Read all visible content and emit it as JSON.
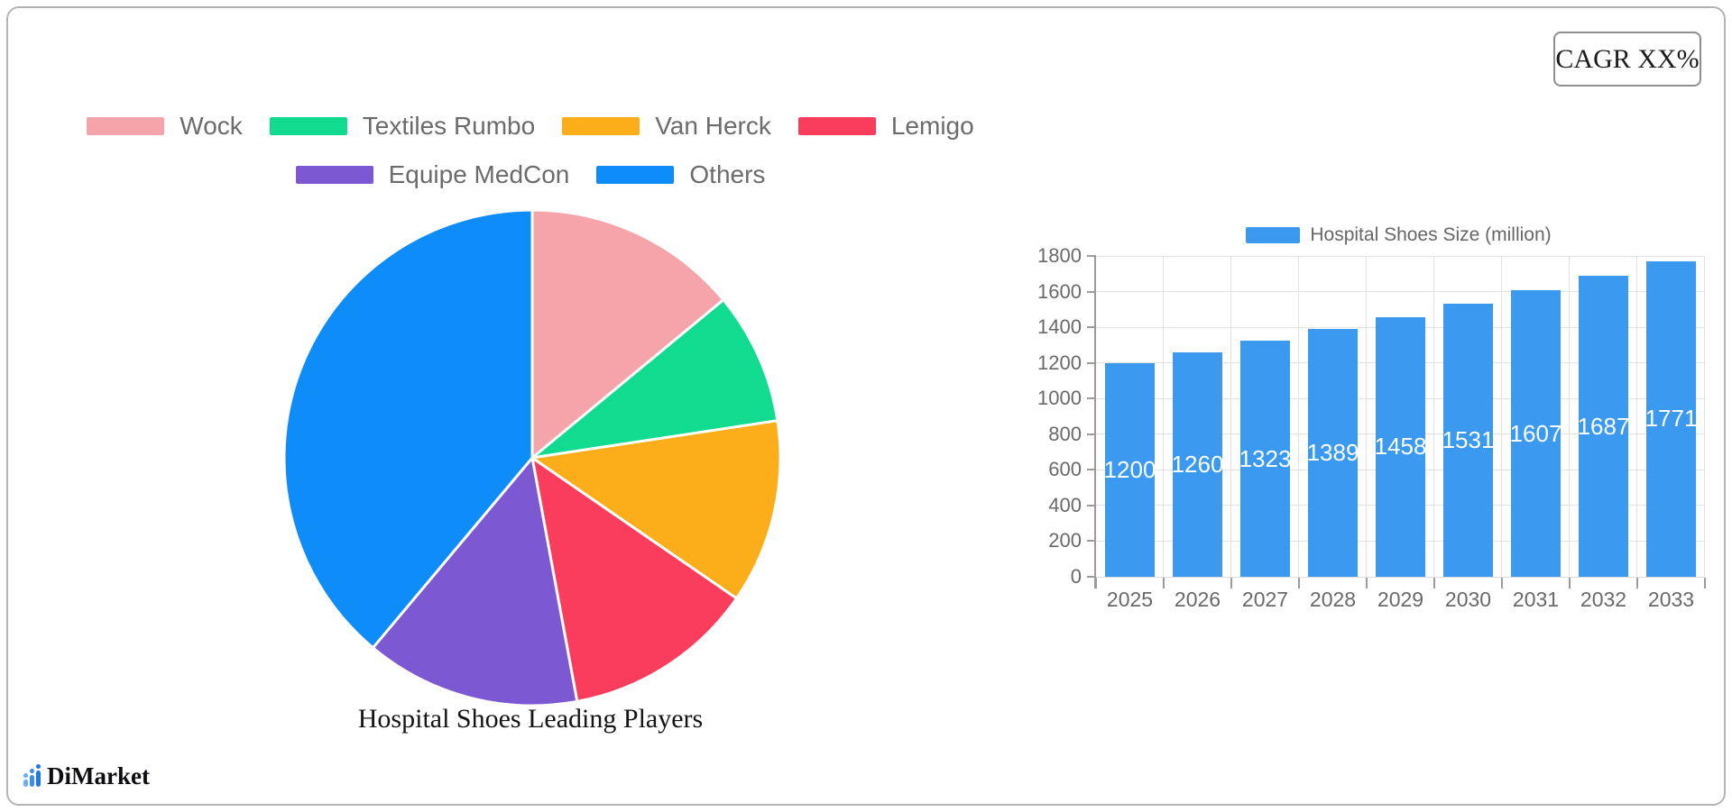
{
  "page": {
    "cagr_label": "CAGR XX%",
    "brand_name": "DiMarket",
    "brand_icon": "bar-chart-icon",
    "frame_border_color": "#b4b4b4"
  },
  "chart_data": [
    {
      "type": "pie",
      "title": "Hospital Shoes Leading Players",
      "labels": [
        "Wock",
        "Textiles Rumbo",
        "Van Herck",
        "Lemigo",
        "Equipe MedCon",
        "Others"
      ],
      "values": [
        14,
        8.6,
        12,
        12.5,
        14,
        38.9
      ],
      "colors": [
        "#F5A4A9",
        "#10DB8F",
        "#FBAD1A",
        "#FB3D5D",
        "#7D58D3",
        "#0E8CFA"
      ],
      "legend_rows": [
        4,
        2
      ],
      "legend_position": "top",
      "legend_text_color": "#6b6b6b",
      "start_angle_deg": 0,
      "direction": "clockwise",
      "slice_border_color": "#ffffff"
    },
    {
      "type": "bar",
      "legend_label": "Hospital Shoes Size (million)",
      "categories": [
        "2025",
        "2026",
        "2027",
        "2028",
        "2029",
        "2030",
        "2031",
        "2032",
        "2033"
      ],
      "values": [
        1200,
        1260,
        1323,
        1389,
        1458,
        1531,
        1607,
        1687,
        1771
      ],
      "ylim": [
        0,
        1800
      ],
      "ytick_step": 200,
      "bar_color": "#3B9AF0",
      "value_label_color": "#ffffff",
      "value_labels": "inside-center",
      "grid": true,
      "grid_color": "#e2e2e2",
      "axis_color": "#9b9b9b",
      "tick_label_color": "#696969",
      "legend_position": "top"
    }
  ]
}
